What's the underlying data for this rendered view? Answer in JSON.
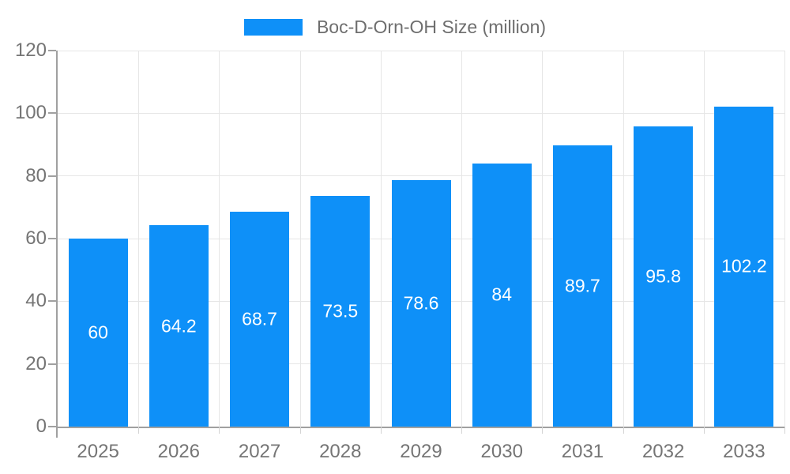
{
  "legend": {
    "label": "Boc-D-Orn-OH Size (million)"
  },
  "chart_data": {
    "type": "bar",
    "title": "Boc-D-Orn-OH Size (million)",
    "series": [
      {
        "name": "Boc-D-Orn-OH Size (million)",
        "values": [
          60,
          64.2,
          68.7,
          73.5,
          78.6,
          84,
          89.7,
          95.8,
          102.2
        ],
        "value_labels": [
          "60",
          "64.2",
          "68.7",
          "73.5",
          "78.6",
          "84",
          "89.7",
          "95.8",
          "102.2"
        ]
      }
    ],
    "categories": [
      "2025",
      "2026",
      "2027",
      "2028",
      "2029",
      "2030",
      "2031",
      "2032",
      "2033"
    ],
    "xlabel": "",
    "ylabel": "",
    "ylim": [
      0,
      120
    ],
    "yticks": [
      0,
      20,
      40,
      60,
      80,
      100,
      120
    ],
    "grid": true,
    "legend_position": "top-center",
    "value_labels_position": "inside-center",
    "colors": {
      "bar": "#0e90f8",
      "bar_value_text": "#ffffff",
      "tick_text": "#757575",
      "legend_text": "#6e6e6e",
      "axis_line": "#a0a0a0",
      "gridline": "#e6e6e6",
      "minor_tick": "#d4d4d4",
      "background": "#ffffff"
    }
  }
}
